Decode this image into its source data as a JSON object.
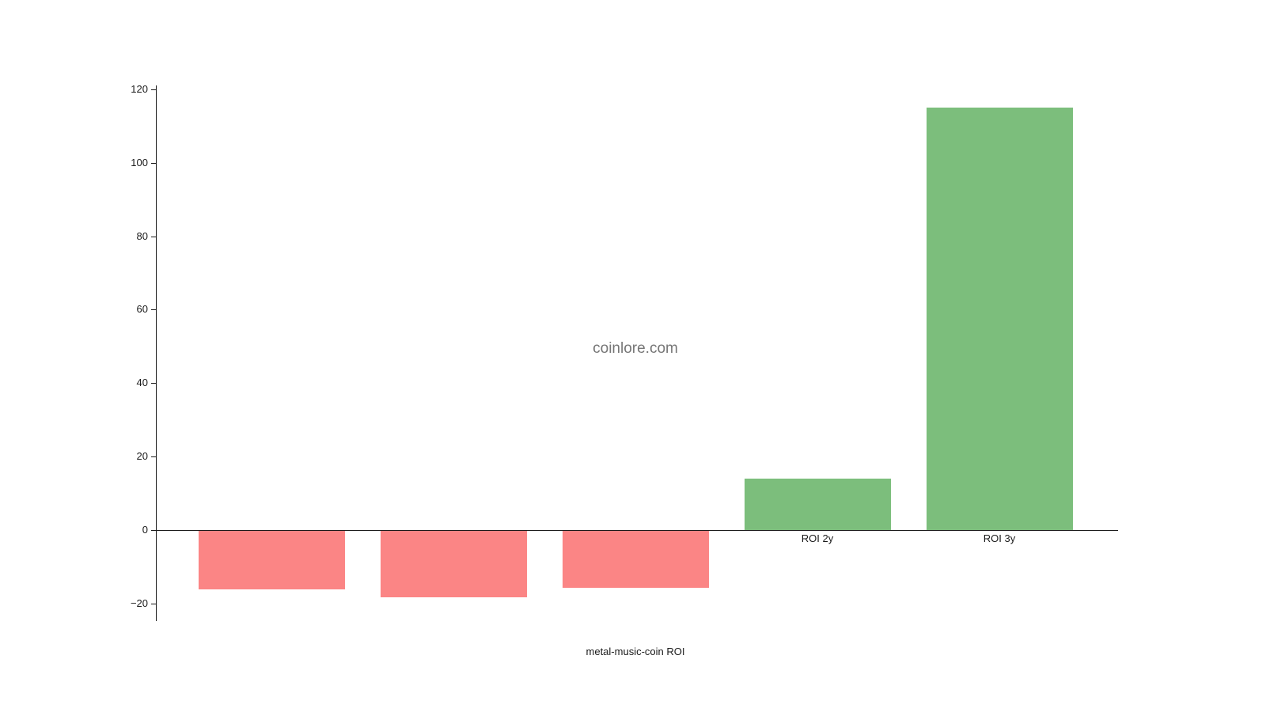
{
  "page": {
    "background": "#ffffff"
  },
  "chart_data": {
    "type": "bar",
    "title": "metal-music-coin ROI",
    "watermark": "coinlore.com",
    "categories": [
      "",
      "",
      "",
      "ROI 2y",
      "ROI 3y"
    ],
    "values": [
      -16,
      -18,
      -15.5,
      14,
      115
    ],
    "positive_color": "#7cbe7c",
    "negative_color": "#fb8585",
    "yticks": [
      -20,
      0,
      20,
      40,
      60,
      80,
      100,
      120
    ],
    "ylim": [
      -25,
      121
    ],
    "xlabel": "",
    "ylabel": "",
    "grid": false,
    "legend": "none"
  }
}
